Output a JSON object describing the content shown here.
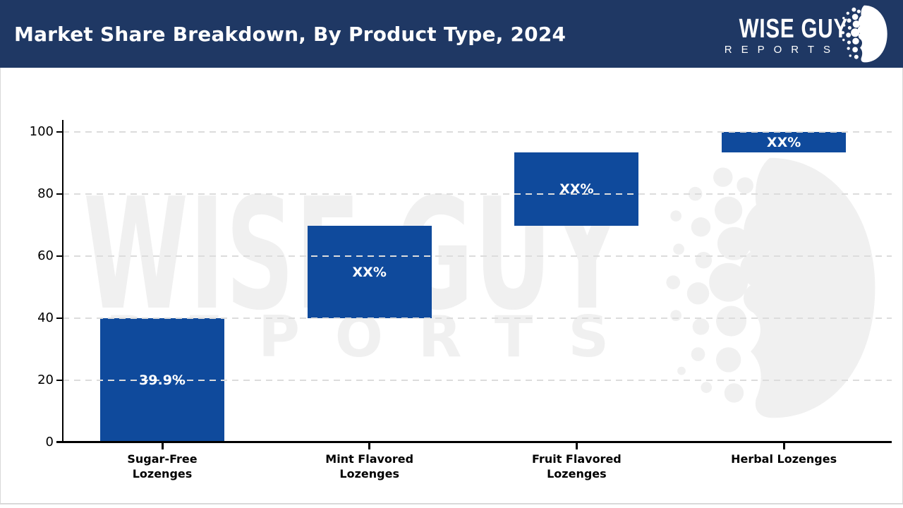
{
  "header": {
    "title": "Market Share Breakdown, By Product Type, 2024",
    "logo_line1": "WISE GUY",
    "logo_line2": "REPORTS"
  },
  "watermark": {
    "line1": "WISE GUY",
    "line2": "REPORTS"
  },
  "colors": {
    "header_bg": "#1f3864",
    "bar": "#0f4a9c",
    "grid": "#dcdcdc",
    "axis": "#000000",
    "watermark": "#f0f0f0",
    "frame": "#d9d9d9"
  },
  "chart_data": {
    "type": "bar",
    "subtype": "waterfall-cumulative",
    "title": "Market Share Breakdown, By Product Type, 2024",
    "categories": [
      "Sugar-Free Lozenges",
      "Mint Flavored Lozenges",
      "Fruit Flavored Lozenges",
      "Herbal Lozenges"
    ],
    "categories_lines": [
      [
        "Sugar-Free",
        "Lozenges"
      ],
      [
        "Mint Flavored",
        "Lozenges"
      ],
      [
        "Fruit Flavored",
        "Lozenges"
      ],
      [
        "Herbal Lozenges"
      ]
    ],
    "series": [
      {
        "name": "Market share",
        "segments": [
          {
            "category": "Sugar-Free Lozenges",
            "start": 0,
            "end": 39.9,
            "value": 39.9,
            "label": "39.9%"
          },
          {
            "category": "Mint Flavored Lozenges",
            "start": 39.9,
            "end": 69.8,
            "value": 29.9,
            "label": "XX%"
          },
          {
            "category": "Fruit Flavored Lozenges",
            "start": 69.8,
            "end": 93.4,
            "value": 23.6,
            "label": "XX%"
          },
          {
            "category": "Herbal Lozenges",
            "start": 93.4,
            "end": 100,
            "value": 6.6,
            "label": "XX%"
          }
        ]
      }
    ],
    "xlabel": "",
    "ylabel": "",
    "ylim": [
      0,
      100
    ],
    "yticks": [
      0,
      20,
      40,
      60,
      80,
      100
    ],
    "grid": "horizontal-dashed",
    "legend": "none",
    "bar_color": "#0f4a9c"
  }
}
